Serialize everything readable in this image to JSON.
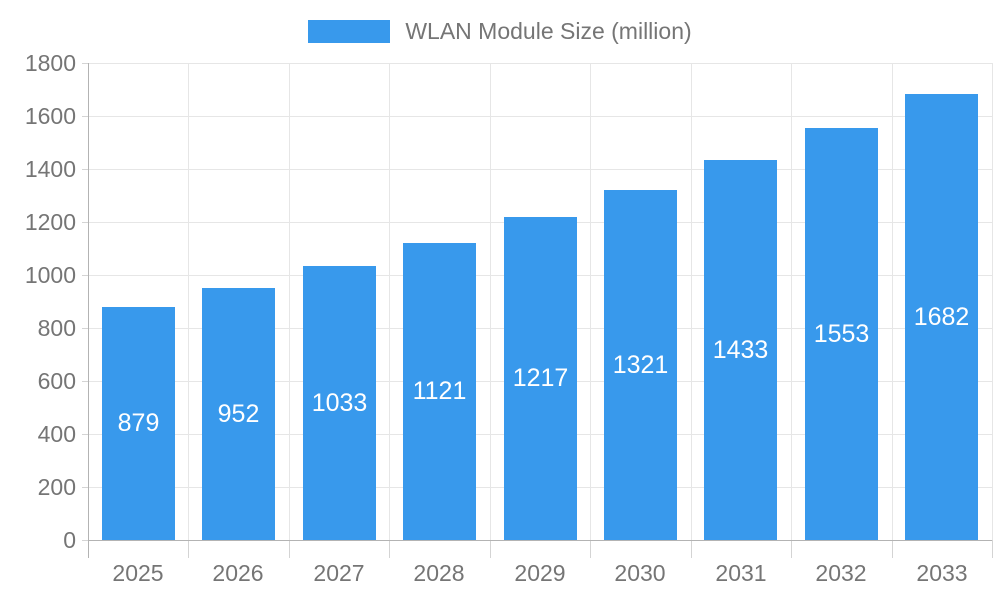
{
  "chart_data": {
    "type": "bar",
    "title": "WLAN Module Size (million)",
    "legend": {
      "position": "top",
      "entries": [
        "WLAN Module Size (million)"
      ]
    },
    "categories": [
      "2025",
      "2026",
      "2027",
      "2028",
      "2029",
      "2030",
      "2031",
      "2032",
      "2033"
    ],
    "series": [
      {
        "name": "WLAN Module Size (million)",
        "values": [
          879,
          952,
          1033,
          1121,
          1217,
          1321,
          1433,
          1553,
          1682
        ]
      }
    ],
    "value_labels_shown": true,
    "xlabel": "",
    "ylabel": "",
    "ylim": [
      0,
      1800
    ],
    "ytick_step": 200,
    "yticks": [
      0,
      200,
      400,
      600,
      800,
      1000,
      1200,
      1400,
      1600,
      1800
    ],
    "grid": true,
    "colors": {
      "bar": "#3899ec",
      "value_label": "#ffffff",
      "axis_label": "#757575",
      "legend_text": "#757575",
      "grid_line": "#e6e6e6",
      "axis_line": "#b3b3b3",
      "tick_line": "#d4d4d4",
      "background": "#ffffff"
    }
  }
}
